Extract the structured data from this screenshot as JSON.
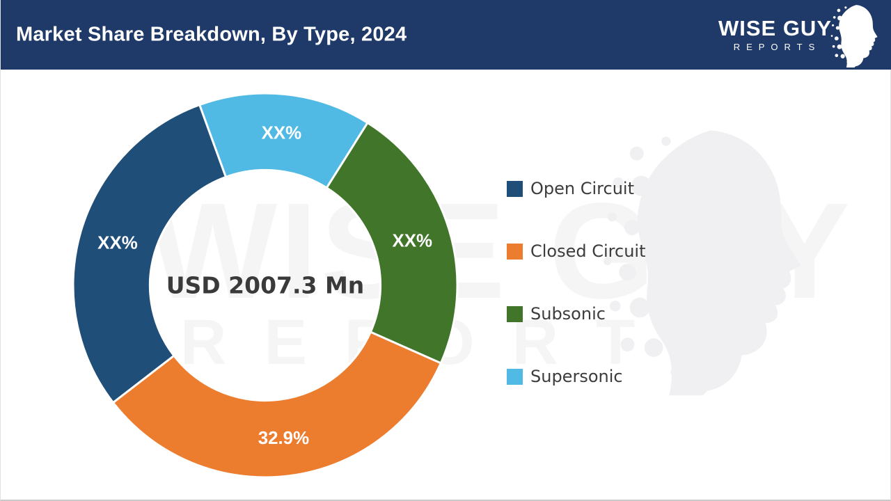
{
  "header": {
    "title": "Market Share Breakdown, By Type, 2024",
    "background": "#1f3a68",
    "logo": {
      "name": "WISE GUY",
      "sub": "REPORTS"
    }
  },
  "watermark": {
    "name": "WISE GUY",
    "sub": "REPORTS"
  },
  "chart_data": {
    "type": "pie",
    "subtype": "donut",
    "title": "Market Share Breakdown, By Type, 2024",
    "center_label": "USD 2007.3 Mn",
    "start_angle_deg": -20,
    "inner_radius_ratio": 0.6,
    "separator_color": "#ffffff",
    "segments": [
      {
        "name": "Supersonic",
        "value": 14.5,
        "display_label": "XX%",
        "color": "#50BAE4"
      },
      {
        "name": "Subsonic",
        "value": 22.7,
        "display_label": "XX%",
        "color": "#40752A"
      },
      {
        "name": "Closed Circuit",
        "value": 32.9,
        "display_label": "32.9%",
        "color": "#ED7D2E"
      },
      {
        "name": "Open Circuit",
        "value": 29.9,
        "display_label": "XX%",
        "color": "#1F4E79"
      }
    ],
    "legend": [
      "Open Circuit",
      "Closed Circuit",
      "Subsonic",
      "Supersonic"
    ],
    "legend_position": "right"
  }
}
